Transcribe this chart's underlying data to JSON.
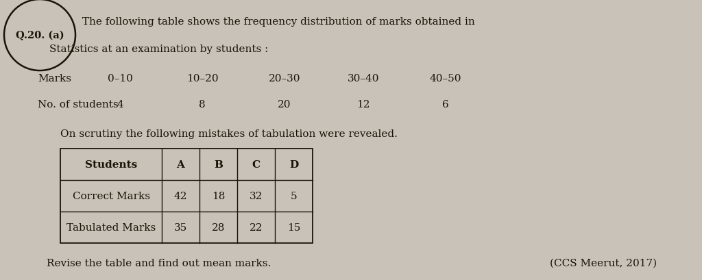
{
  "freq_table_headers": [
    "Marks",
    "0–10",
    "10–20",
    "20–30",
    "30–40",
    "40–50"
  ],
  "freq_table_row_label": "No. of students",
  "freq_table_values": [
    "4",
    "8",
    "20",
    "12",
    "6"
  ],
  "scrutiny_text": "On scrutiny the following mistakes of tabulation were revealed.",
  "inner_table_headers": [
    "Students",
    "A",
    "B",
    "C",
    "D"
  ],
  "inner_table_row1_label": "Correct Marks",
  "inner_table_row1_values": [
    "42",
    "18",
    "32",
    "5"
  ],
  "inner_table_row2_label": "Tabulated Marks",
  "inner_table_row2_values": [
    "35",
    "28",
    "22",
    "15"
  ],
  "footer_left": "Revise the table and find out mean marks.",
  "footer_right": "(CCS Meerut, 2017)",
  "bg_color": "#c8c2b8",
  "text_color": "#1a1408",
  "circle_label": "Q.20. (a)",
  "title_rest": " The following table shows the frequency distribution of marks obtained in",
  "title_line2": "Statistics at an examination by students :"
}
